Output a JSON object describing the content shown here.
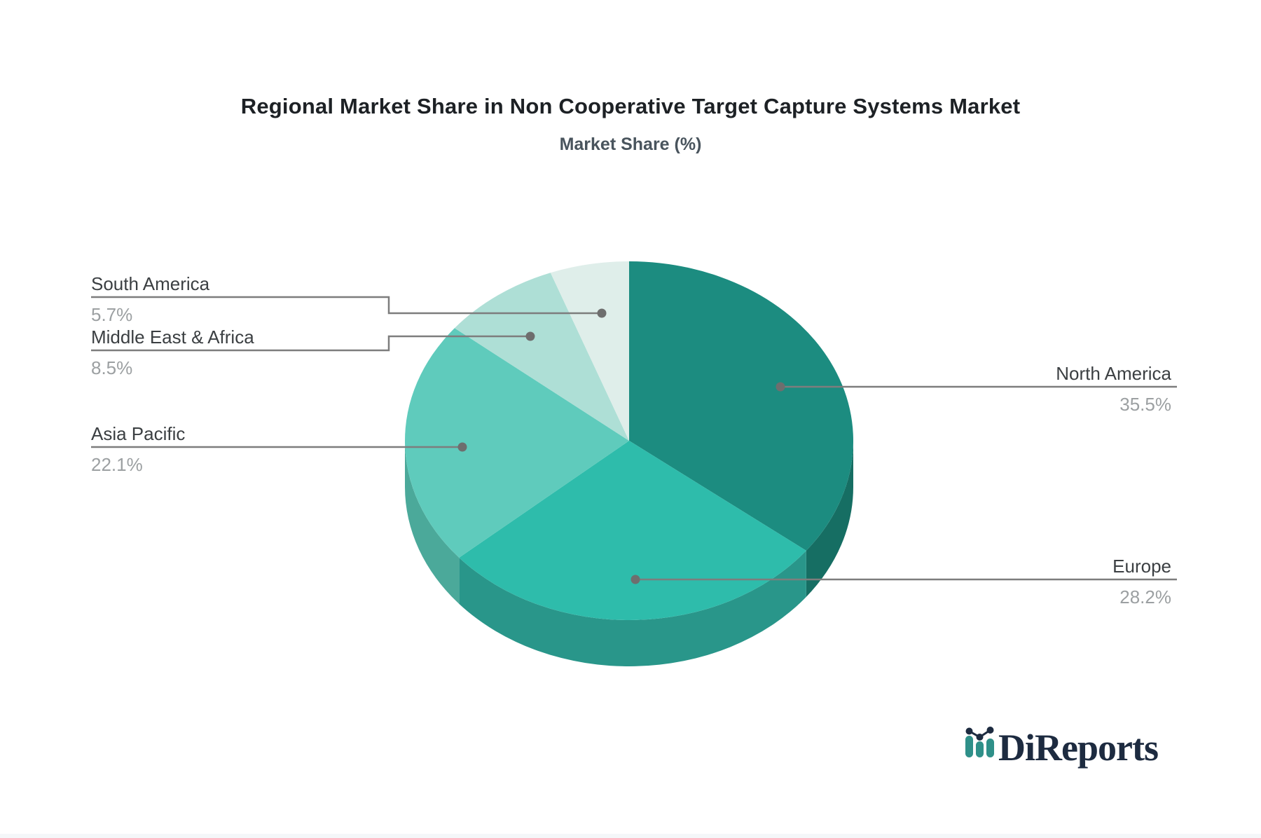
{
  "title": "Regional Market Share in Non Cooperative Target Capture Systems Market",
  "subtitle": "Market Share (%)",
  "chart_data": {
    "type": "pie",
    "style": "3d",
    "title": "Regional Market Share in Non Cooperative Target Capture Systems Market",
    "subtitle": "Market Share (%)",
    "unit": "%",
    "start_angle": "12 o'clock",
    "direction": "clockwise",
    "legend_position": "callout-labels",
    "slices": [
      {
        "label": "North America",
        "value": 35.5,
        "pct_text": "35.5%",
        "color": "#1c8c80",
        "side_color": "#166e63"
      },
      {
        "label": "Europe",
        "value": 28.2,
        "pct_text": "28.2%",
        "color": "#2ebcab",
        "side_color": "#29968a"
      },
      {
        "label": "Asia Pacific",
        "value": 22.1,
        "pct_text": "22.1%",
        "color": "#5fcbbc",
        "side_color": "#4ba99a"
      },
      {
        "label": "Middle East & Africa",
        "value": 8.5,
        "pct_text": "8.5%",
        "color": "#aedfd6",
        "side_color": "#8fc9bf"
      },
      {
        "label": "South America",
        "value": 5.7,
        "pct_text": "5.7%",
        "color": "#dfeeea",
        "side_color": "#c2dcd6"
      }
    ],
    "colors": {
      "leader_line": "#7d7d7d",
      "leader_dot": "#6e6e6e",
      "label_text": "#3b3f42",
      "pct_text": "#9ca0a2"
    }
  },
  "logo": {
    "text": "DiReports",
    "icon": "bar-line-chart-icon",
    "bar_color": "#2f9089",
    "text_color": "#1d2b40"
  }
}
